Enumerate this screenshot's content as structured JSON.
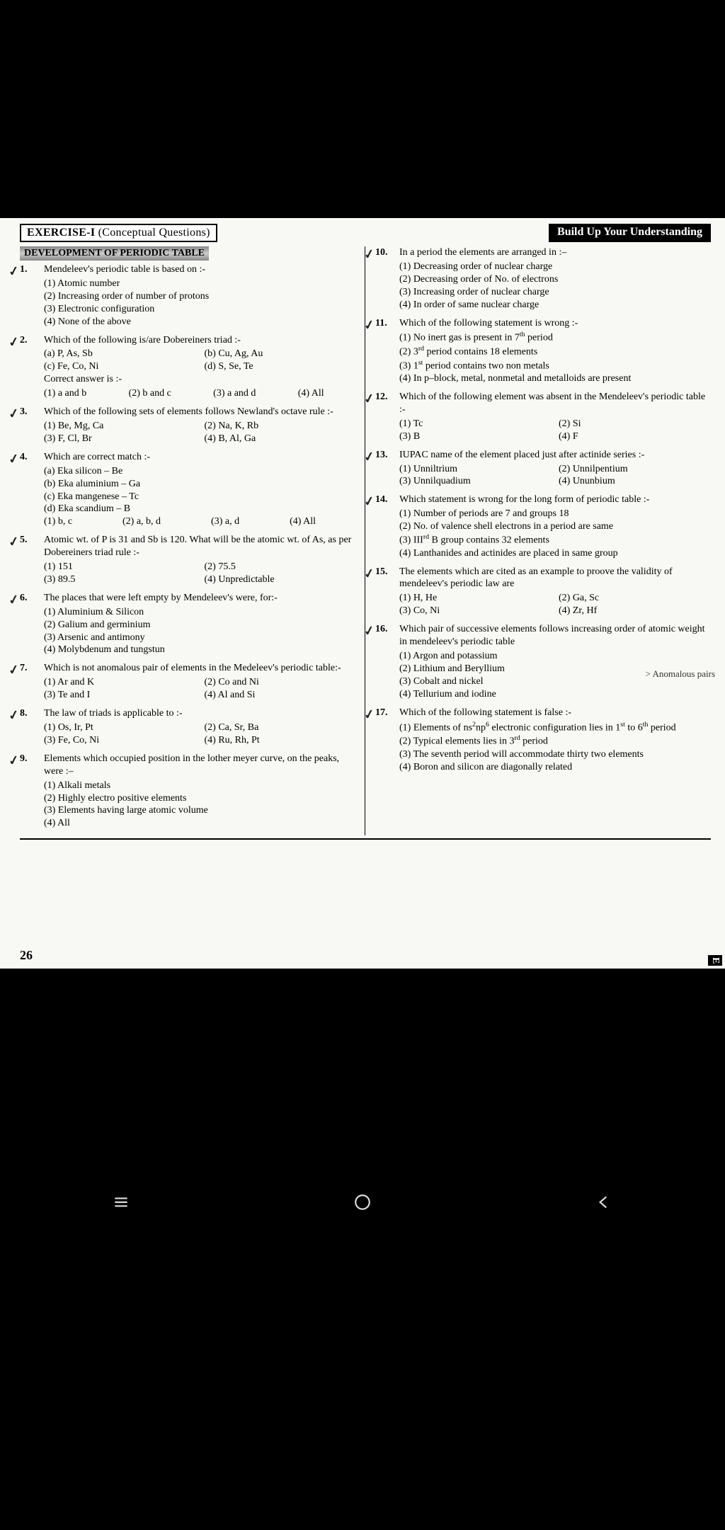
{
  "header": {
    "exercise_bold": "EXERCISE-I",
    "exercise_light": " (Conceptual Questions)",
    "build": "Build Up Your Understanding"
  },
  "section_title": "DEVELOPMENT OF PERIODIC TABLE",
  "page_number": "26",
  "side_tab": "E",
  "left": [
    {
      "n": "1.",
      "checked": true,
      "stem": "Mendeleev's periodic table is based on :-",
      "opts": [
        "(1) Atomic number",
        "(2) Increasing order of number of protons",
        "(3) Electronic configuration",
        "(4) None of the above"
      ],
      "layout": "1col"
    },
    {
      "n": "2.",
      "checked": true,
      "stem": "Which of the following is/are Dobereiners triad :-",
      "opts": [
        "(a) P, As, Sb",
        "(b) Cu, Ag, Au",
        "(c) Fe, Co, Ni",
        "(d) S, Se, Te"
      ],
      "layout": "2col",
      "extra": "Correct answer is :-",
      "opts2": [
        "(1) a and b",
        "(2) b and c",
        "(3) a and d",
        "(4) All"
      ],
      "layout2": "4col"
    },
    {
      "n": "3.",
      "checked": true,
      "stem": "Which of the following sets of elements follows Newland's octave rule :-",
      "opts": [
        "(1) Be, Mg, Ca",
        "(2) Na, K, Rb",
        "(3) F, Cl, Br",
        "(4) B, Al, Ga"
      ],
      "layout": "2col"
    },
    {
      "n": "4.",
      "checked": true,
      "stem": "Which are correct match :-",
      "opts": [
        "(a) Eka silicon – Be",
        "(b) Eka aluminium – Ga",
        "(c) Eka mangenese – Tc",
        "(d) Eka scandium – B"
      ],
      "layout": "1col",
      "opts2": [
        "(1) b, c",
        "(2) a, b, d",
        "(3) a, d",
        "(4) All"
      ],
      "layout2": "4col"
    },
    {
      "n": "5.",
      "checked": true,
      "stem": "Atomic wt. of P is 31 and Sb is 120. What will be the atomic wt. of As, as per Dobereiners triad rule :-",
      "opts": [
        "(1) 151",
        "(2) 75.5",
        "(3) 89.5",
        "(4) Unpredictable"
      ],
      "layout": "2col"
    },
    {
      "n": "6.",
      "checked": true,
      "stem": "The places that were left empty by Mendeleev's were, for:-",
      "opts": [
        "(1) Aluminium & Silicon",
        "(2) Galium and germinium",
        "(3) Arsenic and antimony",
        "(4) Molybdenum and tungstun"
      ],
      "layout": "1col"
    },
    {
      "n": "7.",
      "checked": true,
      "stem": "Which is not anomalous pair of elements in the Medeleev's periodic table:-",
      "opts": [
        "(1) Ar and K",
        "(2) Co and Ni",
        "(3) Te and I",
        "(4) Al and Si"
      ],
      "layout": "2col"
    },
    {
      "n": "8.",
      "checked": true,
      "stem": "The law of triads is applicable to :-",
      "opts": [
        "(1) Os, Ir, Pt",
        "(2) Ca, Sr, Ba",
        "(3) Fe, Co, Ni",
        "(4) Ru, Rh, Pt"
      ],
      "layout": "2col"
    },
    {
      "n": "9.",
      "checked": true,
      "stem": "Elements which occupied position in the lother meyer curve, on the peaks, were :–",
      "opts": [
        "(1) Alkali metals",
        "(2) Highly electro positive elements",
        "(3) Elements having large atomic volume",
        "(4) All"
      ],
      "layout": "1col"
    }
  ],
  "right": [
    {
      "n": "10.",
      "checked": true,
      "stem": "In a period the elements are arranged in :–",
      "opts": [
        "(1) Decreasing order of nuclear charge",
        "(2) Decreasing order of No. of electrons",
        "(3) Increasing order of nuclear charge",
        "(4) In order of same nuclear charge"
      ],
      "layout": "1col"
    },
    {
      "n": "11.",
      "checked": true,
      "stem": "Which of the following statement is wrong :-",
      "opts_html": [
        "(1) No inert gas is present in 7<sup>th</sup> period",
        "(2) 3<sup>rd</sup> period contains 18 elements",
        "(3) 1<sup>st</sup> period contains two non metals",
        "(4) In p–block, metal, nonmetal and metalloids are present"
      ],
      "layout": "1col"
    },
    {
      "n": "12.",
      "checked": true,
      "stem": "Which of the following element was absent in the Mendeleev's periodic table :-",
      "opts": [
        "(1) Tc",
        "(2) Si",
        "(3) B",
        "(4) F"
      ],
      "layout": "2col"
    },
    {
      "n": "13.",
      "checked": true,
      "stem": "IUPAC name of the element placed just after actinide series :-",
      "opts": [
        "(1) Unniltrium",
        "(2) Unnilpentium",
        "(3) Unnilquadium",
        "(4) Ununbium"
      ],
      "layout": "2col"
    },
    {
      "n": "14.",
      "checked": true,
      "stem": "Which statement is wrong for the long form of periodic table :-",
      "opts_html": [
        "(1) Number of periods are 7 and groups 18",
        "(2) No. of valence shell electrons in a period are same",
        "(3) III<sup>rd</sup> B group contains 32 elements",
        "(4) Lanthanides and actinides are placed in same group"
      ],
      "layout": "1col"
    },
    {
      "n": "15.",
      "checked": true,
      "stem": "The elements which are cited as an example to proove the validity of mendeleev's periodic law are",
      "opts": [
        "(1) H, He",
        "(2) Ga, Sc",
        "(3) Co, Ni",
        "(4) Zr, Hf"
      ],
      "layout": "2col"
    },
    {
      "n": "16.",
      "checked": true,
      "stem": "Which pair of successive elements follows increasing order of atomic weight in mendeleev's periodic table",
      "opts": [
        "(1) Argon and potassium",
        "(2) Lithium and Beryllium",
        "(3) Cobalt and nickel",
        "(4) Tellurium and iodine"
      ],
      "layout": "1col",
      "annot": "Anomalous pairs"
    },
    {
      "n": "17.",
      "checked": true,
      "stem": "Which of the following statement is false :-",
      "opts_html": [
        "(1) Elements of ns<sup>2</sup>np<sup>6</sup> electronic configuration lies in 1<sup>st</sup> to 6<sup>th</sup> period",
        "(2) Typical elements lies in 3<sup>rd</sup> period",
        "(3) The seventh period will accommodate thirty two elements",
        "(4) Boron and silicon are diagonally related"
      ],
      "layout": "1col"
    }
  ],
  "nav": {
    "menu": "menu",
    "home": "home",
    "back": "back"
  }
}
